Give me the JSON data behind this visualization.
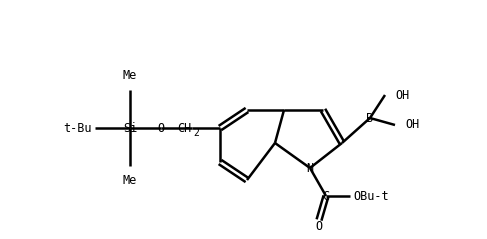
{
  "background_color": "#ffffff",
  "line_color": "#000000",
  "text_color": "#000000",
  "figsize": [
    4.87,
    2.39
  ],
  "dpi": 100,
  "line_width": 1.8,
  "font_size": 8.5,
  "font_size_sub": 7.0,
  "xlim": [
    0,
    487
  ],
  "ylim": [
    0,
    239
  ]
}
